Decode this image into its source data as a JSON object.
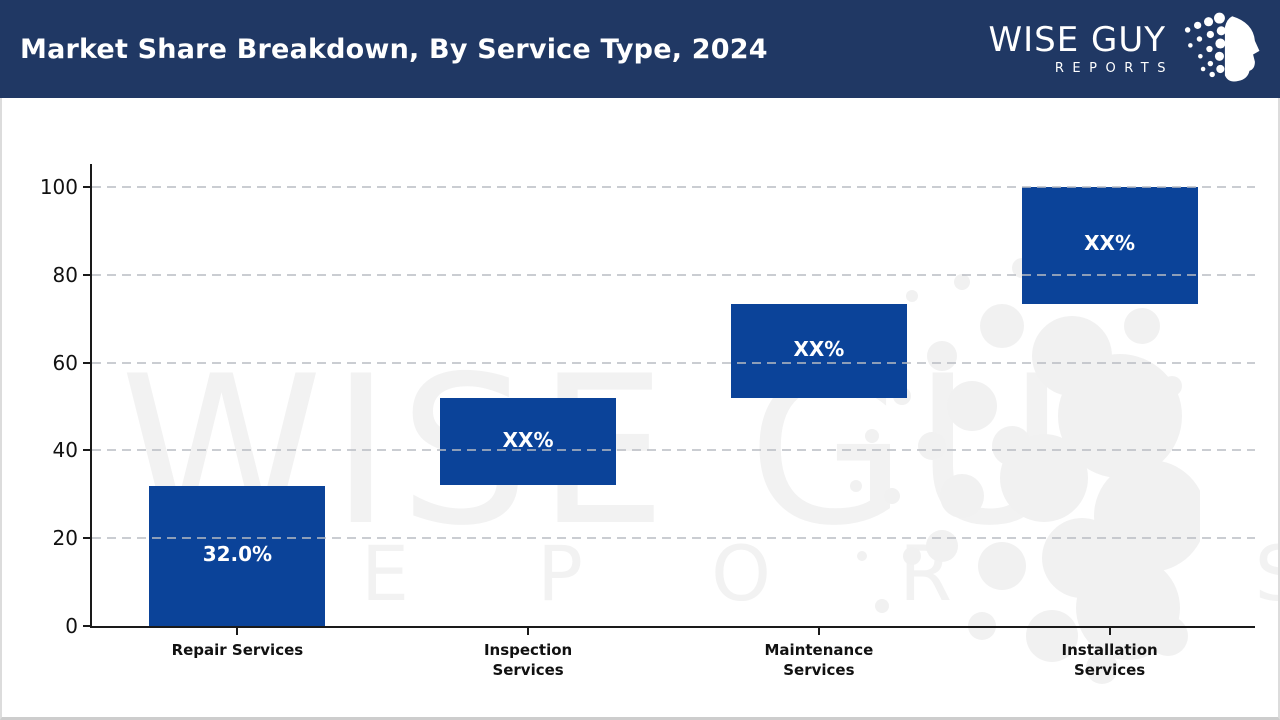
{
  "header": {
    "title": "Market Share Breakdown, By Service Type, 2024",
    "background_color": "#203864",
    "logo": {
      "name": "WISE GUY",
      "subname": "REPORTS"
    }
  },
  "watermark": {
    "wordmark": "WISE GU",
    "reports_line": "R E P O R T S"
  },
  "chart_data": {
    "type": "bar",
    "subtype": "waterfall",
    "title": "Market Share Breakdown, By Service Type, 2024",
    "categories": [
      "Repair Services",
      "Inspection Services",
      "Maintenance Services",
      "Installation Services"
    ],
    "category_lines": [
      [
        "Repair Services"
      ],
      [
        "Inspection",
        "Services"
      ],
      [
        "Maintenance",
        "Services"
      ],
      [
        "Installation",
        "Services"
      ]
    ],
    "segments": [
      {
        "category": "Repair Services",
        "start": 0,
        "end": 32,
        "label": "32.0%"
      },
      {
        "category": "Inspection Services",
        "start": 32,
        "end": 52,
        "label": "XX%"
      },
      {
        "category": "Maintenance Services",
        "start": 52,
        "end": 73.4,
        "label": "XX%"
      },
      {
        "category": "Installation Services",
        "start": 73.4,
        "end": 100,
        "label": "XX%"
      }
    ],
    "ylabel": "",
    "xlabel": "",
    "ylim": [
      0,
      100
    ],
    "yticks": [
      0,
      20,
      40,
      60,
      80,
      100
    ],
    "grid": "horizontal-dashed-over-bars",
    "legend": "none",
    "bar_color": "#0b4399",
    "bar_label_color": "#ffffff",
    "axis_color": "#1a1a1a",
    "grid_color": "#c9c9c9"
  }
}
